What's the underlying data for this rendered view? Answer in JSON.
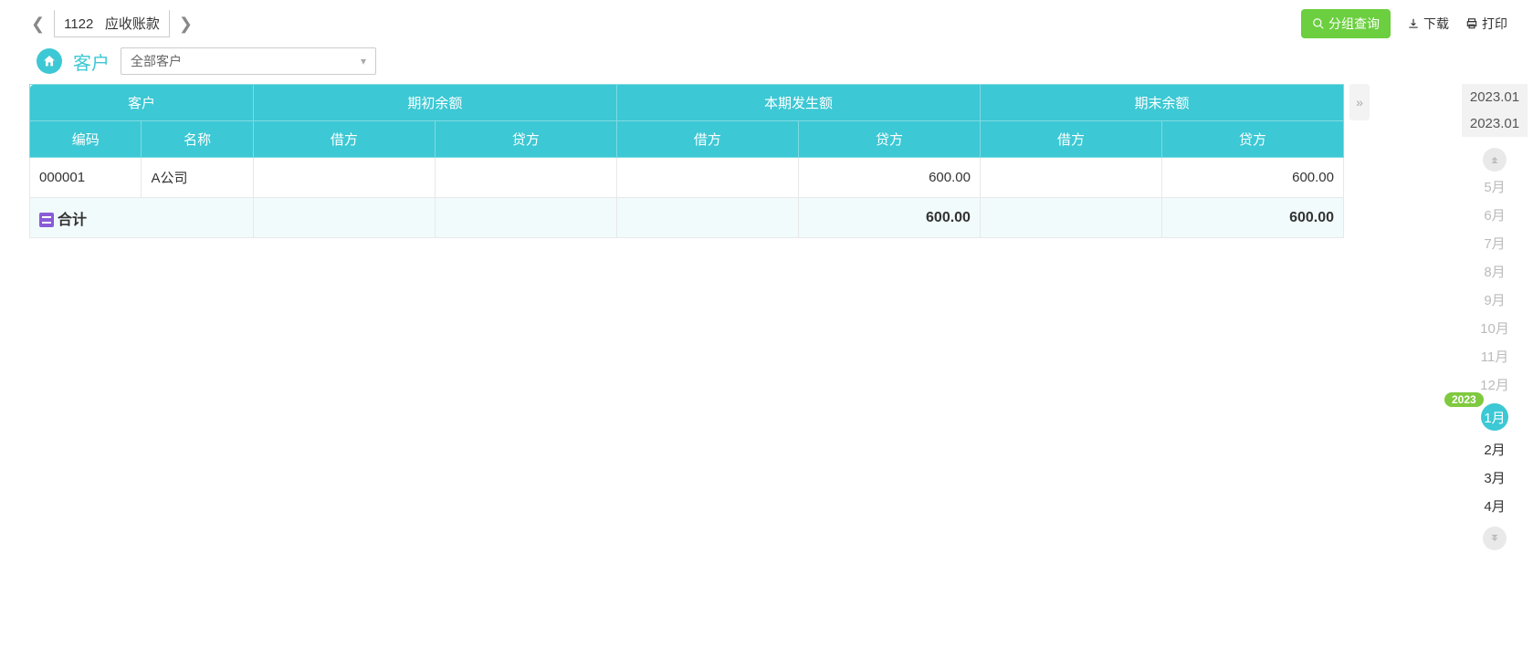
{
  "header": {
    "account_code": "1122",
    "account_name": "应收账款",
    "group_query": "分组查询",
    "download": "下载",
    "print": "打印"
  },
  "filter": {
    "label": "客户",
    "selected": "全部客户"
  },
  "table": {
    "group_headers": {
      "customer": "客户",
      "opening": "期初余额",
      "current": "本期发生额",
      "closing": "期末余额"
    },
    "sub_headers": {
      "code": "编码",
      "name": "名称",
      "debit": "借方",
      "credit": "贷方"
    },
    "rows": [
      {
        "code": "000001",
        "name": "A公司",
        "opening_debit": "",
        "opening_credit": "",
        "current_debit": "",
        "current_credit": "600.00",
        "closing_debit": "",
        "closing_credit": "600.00"
      }
    ],
    "total": {
      "label": "合计",
      "opening_debit": "",
      "opening_credit": "",
      "current_debit": "",
      "current_credit": "600.00",
      "closing_debit": "",
      "closing_credit": "600.00"
    }
  },
  "sidebar": {
    "period_from": "2023.01",
    "period_to": "2023.01",
    "year_badge": "2023",
    "months_disabled": [
      "5月",
      "6月",
      "7月",
      "8月",
      "9月",
      "10月",
      "11月",
      "12月"
    ],
    "month_active": "1月",
    "months_enabled": [
      "2月",
      "3月",
      "4月"
    ]
  }
}
